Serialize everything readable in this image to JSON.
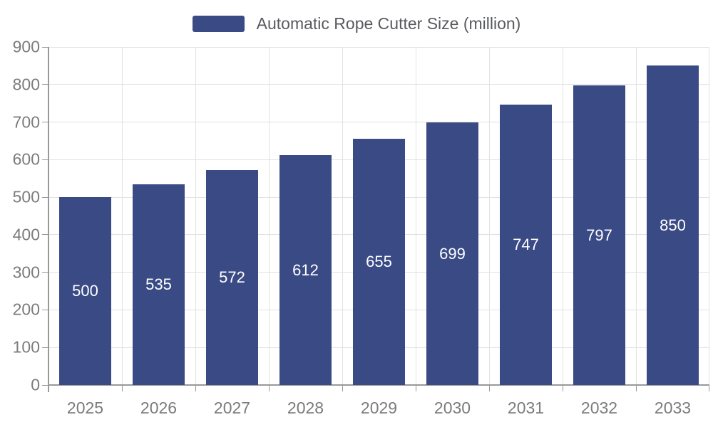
{
  "legend": {
    "label": "Automatic Rope Cutter Size (million)"
  },
  "colors": {
    "bar": "#394A85",
    "gridline": "#E2E2E2",
    "axis_line": "#999999",
    "tick": "#999999",
    "axis_text": "#7B7B7B",
    "legend_text": "#595A5E",
    "value_label": "#FFFFFF",
    "background": "#FFFFFF"
  },
  "chart_data": {
    "type": "bar",
    "title": "Automatic Rope Cutter Size (million)",
    "series_name": "Automatic Rope Cutter Size (million)",
    "categories": [
      "2025",
      "2026",
      "2027",
      "2028",
      "2029",
      "2030",
      "2031",
      "2032",
      "2033"
    ],
    "values": [
      500,
      535,
      572,
      612,
      655,
      699,
      747,
      797,
      850
    ],
    "xlabel": "",
    "ylabel": "",
    "ylim": [
      0,
      900
    ],
    "yticks": [
      0,
      100,
      200,
      300,
      400,
      500,
      600,
      700,
      800,
      900
    ],
    "grid": true,
    "grid_vertical": true,
    "legend_position": "top-center",
    "value_label_position": "inside-center"
  }
}
